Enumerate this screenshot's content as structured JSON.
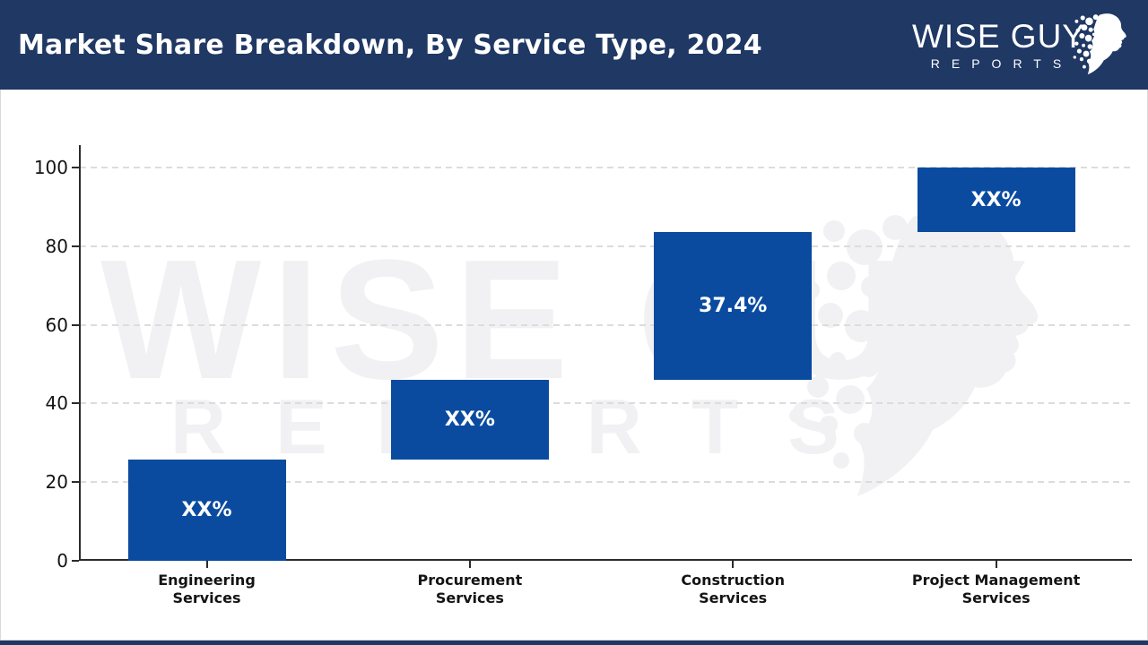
{
  "header": {
    "title": "Market Share Breakdown, By Service Type, 2024",
    "bg_color": "#1f3864",
    "logo": {
      "line1": "WISE GUY",
      "line2": "REPORTS",
      "face_icon": "dotted-head-profile"
    }
  },
  "watermark": {
    "line1": "WISE GUY",
    "line2": "REPORTS",
    "face_icon": "dotted-head-profile",
    "color": "#f1f1f3"
  },
  "footer": {
    "strip_color": "#1f3864"
  },
  "chart_data": {
    "type": "waterfall",
    "title": "Market Share Breakdown, By Service Type, 2024",
    "xlabel": "",
    "ylabel": "",
    "ylim": [
      0,
      106
    ],
    "yticks": [
      0,
      20,
      40,
      60,
      80,
      100
    ],
    "grid": true,
    "grid_style": "dashed",
    "legend": "none",
    "bar_color": "#0a4ba0",
    "label_color": "#ffffff",
    "segments": [
      {
        "name": "Engineering Services",
        "lines": [
          "Engineering",
          "Services"
        ],
        "start": 0,
        "end": 25.8,
        "value_label": "XX%"
      },
      {
        "name": "Procurement Services",
        "lines": [
          "Procurement",
          "Services"
        ],
        "start": 25.8,
        "end": 46.1,
        "value_label": "XX%"
      },
      {
        "name": "Construction Services",
        "lines": [
          "Construction",
          "Services"
        ],
        "start": 46.1,
        "end": 83.5,
        "value_label": "37.4%"
      },
      {
        "name": "Project Management Services",
        "lines": [
          "Project Management",
          "Services"
        ],
        "start": 83.5,
        "end": 100,
        "value_label": "XX%"
      }
    ]
  }
}
